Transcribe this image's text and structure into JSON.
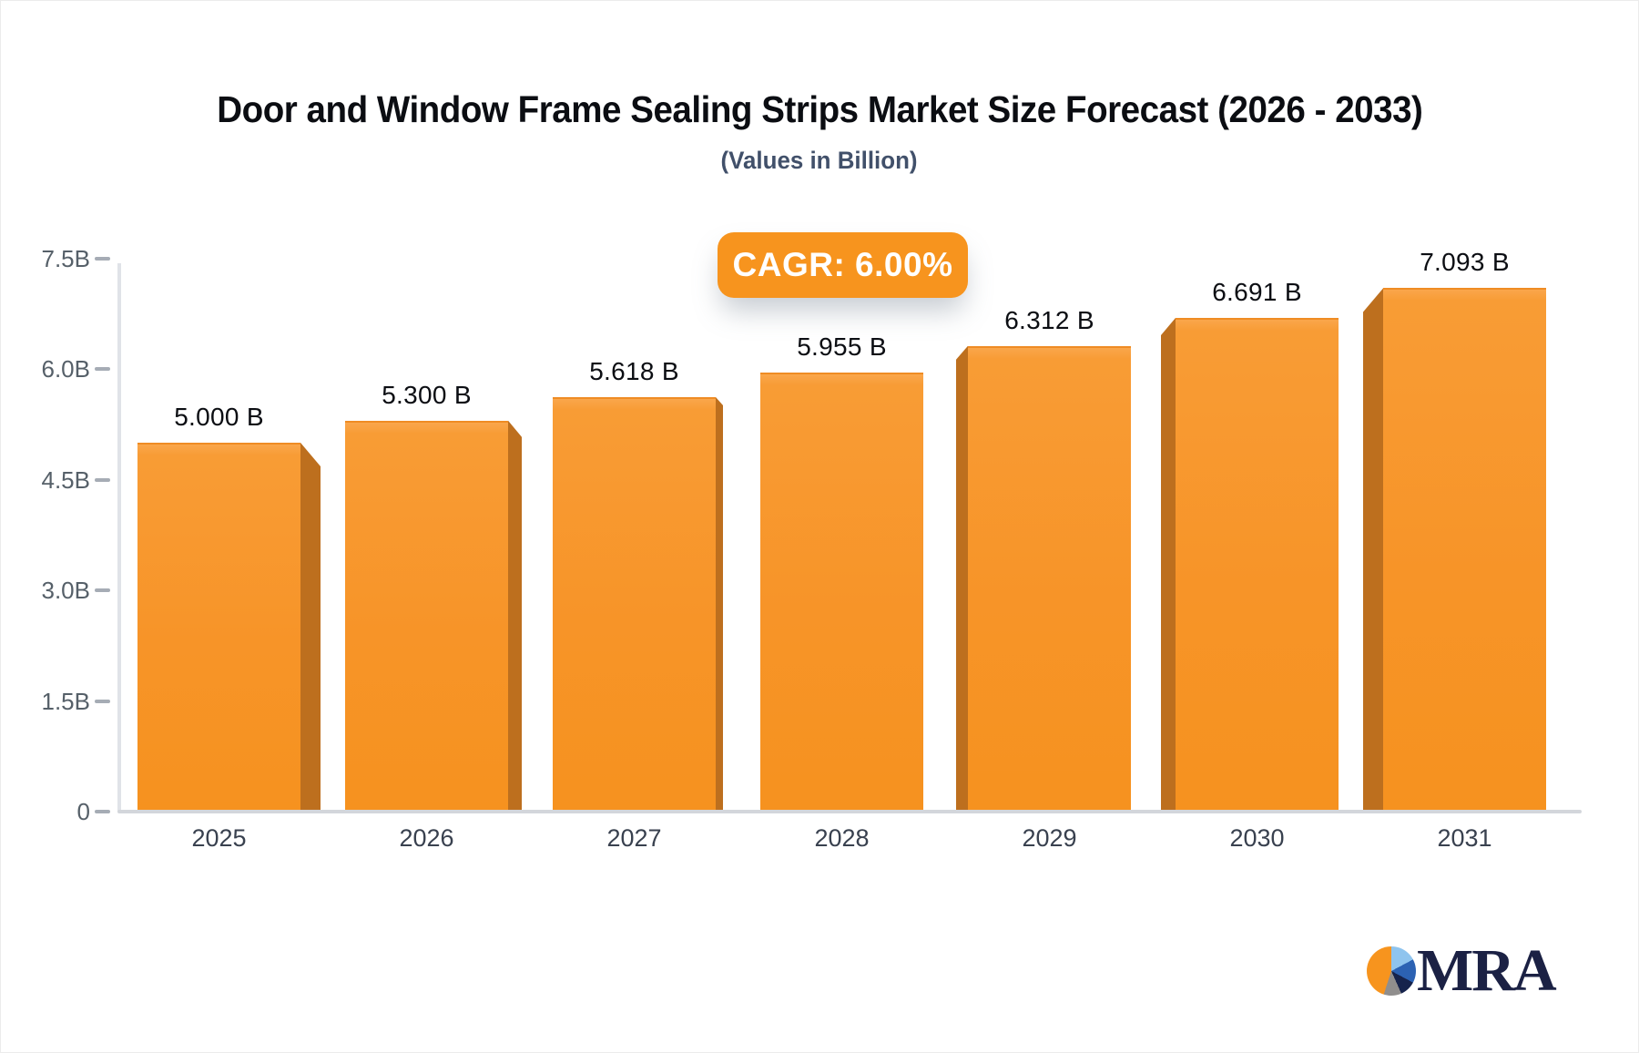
{
  "header": {
    "title": "Door and Window Frame Sealing Strips Market Size Forecast (2026 - 2033)",
    "subtitle": "(Values in Billion)"
  },
  "badge": {
    "label": "CAGR: 6.00%",
    "color": "#F7941E",
    "text_color": "#ffffff"
  },
  "chart_data": {
    "type": "bar",
    "title": "Door and Window Frame Sealing Strips Market Size Forecast (2026 - 2033)",
    "subtitle": "(Values in Billion)",
    "annotation": "CAGR: 6.00%",
    "categories": [
      "2025",
      "2026",
      "2027",
      "2028",
      "2029",
      "2030",
      "2031"
    ],
    "values": [
      5.0,
      5.3,
      5.618,
      5.955,
      6.312,
      6.691,
      7.093
    ],
    "value_labels": [
      "5.000 B",
      "5.300 B",
      "5.618 B",
      "5.955 B",
      "6.312 B",
      "6.691 B",
      "7.093 B"
    ],
    "xlabel": "",
    "ylabel": "",
    "ylim": [
      0,
      7.5
    ],
    "ytick_labels": [
      "7.5B",
      "6.0B",
      "4.5B",
      "3.0B",
      "1.5B",
      "0"
    ],
    "ytick_values": [
      7.5,
      6.0,
      4.5,
      3.0,
      1.5,
      0
    ],
    "grid": false,
    "legend": "none",
    "style": "3d-perspective-bars",
    "bar_color": "#F7941E",
    "bar_side_color": "#BD6F1E"
  },
  "branding": {
    "logo_text": "MRA"
  }
}
